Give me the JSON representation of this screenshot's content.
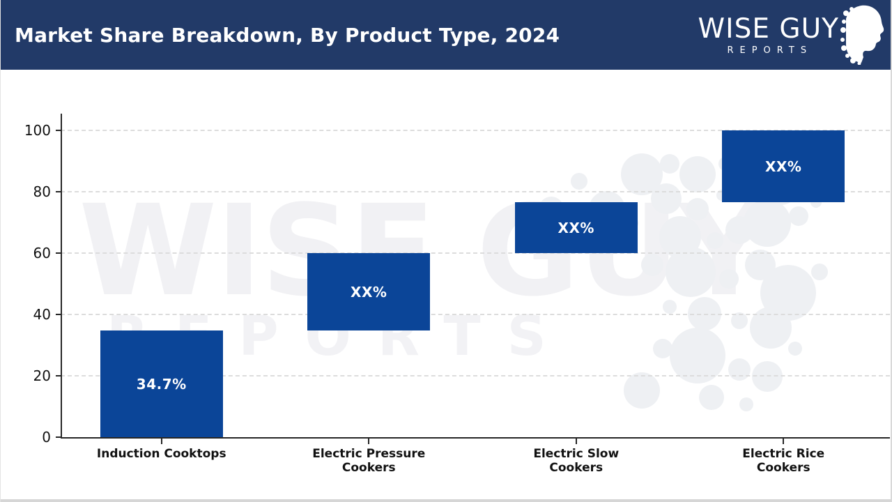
{
  "header": {
    "title": "Market Share Breakdown, By Product Type, 2024",
    "logo": {
      "name": "WISE GUY",
      "subtitle": "REPORTS"
    }
  },
  "watermark": {
    "line1": "WISE GUY",
    "line2": "REPORTS"
  },
  "chart_data": {
    "type": "bar",
    "subtype": "waterfall",
    "title": "Market Share Breakdown, By Product Type, 2024",
    "categories": [
      "Induction Cooktops",
      "Electric Pressure Cookers",
      "Electric Slow Cookers",
      "Electric Rice Cookers"
    ],
    "category_label_lines": [
      [
        "Induction Cooktops"
      ],
      [
        "Electric Pressure",
        "Cookers"
      ],
      [
        "Electric Slow",
        "Cookers"
      ],
      [
        "Electric Rice",
        "Cookers"
      ]
    ],
    "bars": [
      {
        "category": "Induction Cooktops",
        "start": 0,
        "end": 34.7,
        "label": "34.7%"
      },
      {
        "category": "Electric Pressure Cookers",
        "start": 34.7,
        "end": 60,
        "label": "XX%"
      },
      {
        "category": "Electric Slow Cookers",
        "start": 60,
        "end": 76.5,
        "label": "XX%"
      },
      {
        "category": "Electric Rice Cookers",
        "start": 76.5,
        "end": 100,
        "label": "XX%"
      }
    ],
    "xlabel": "",
    "ylabel": "",
    "yticks": [
      0,
      20,
      40,
      60,
      80,
      100
    ],
    "ylim": [
      0,
      105
    ],
    "grid": "horizontal-dashed",
    "legend": "none",
    "colors": {
      "bar": "#0b4598",
      "bar_label": "#ffffff",
      "axis": "#262626",
      "grid": "#dcdcdc",
      "tick_label": "#111111",
      "header_bg": "#223a68",
      "watermark": "#f1f1f4"
    }
  }
}
